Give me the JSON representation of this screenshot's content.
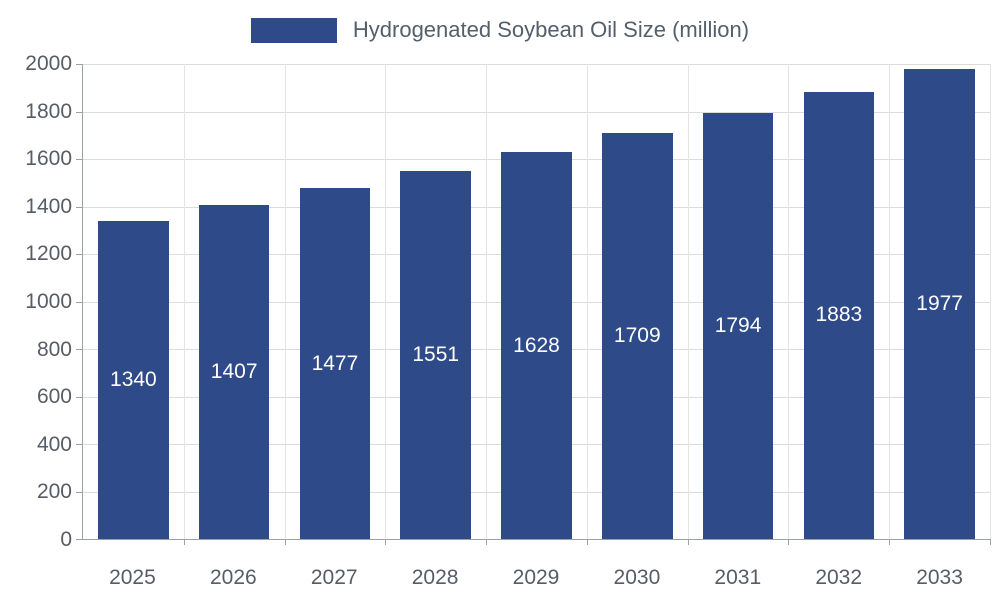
{
  "legend": {
    "label": "Hydrogenated Soybean Oil Size (million)",
    "swatch_color": "#2e4a88"
  },
  "chart_data": {
    "type": "bar",
    "title": "",
    "categories": [
      "2025",
      "2026",
      "2027",
      "2028",
      "2029",
      "2030",
      "2031",
      "2032",
      "2033"
    ],
    "series": [
      {
        "name": "Hydrogenated Soybean Oil Size (million)",
        "values": [
          1340,
          1407,
          1477,
          1551,
          1628,
          1709,
          1794,
          1883,
          1977
        ]
      }
    ],
    "xlabel": "",
    "ylabel": "",
    "ylim": [
      0,
      2000
    ],
    "yticks": [
      0,
      200,
      400,
      600,
      800,
      1000,
      1200,
      1400,
      1600,
      1800,
      2000
    ],
    "grid": true,
    "legend_position": "top",
    "bar_color": "#2e4a88",
    "bar_label_color": "#ffffff"
  }
}
